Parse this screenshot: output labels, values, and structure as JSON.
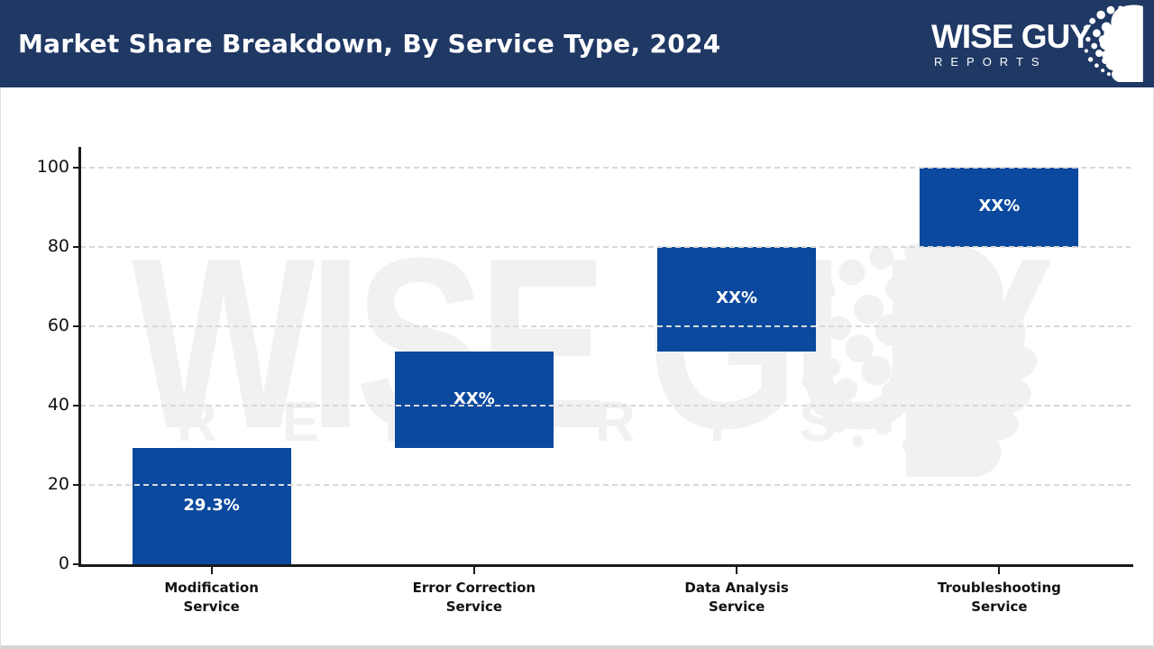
{
  "header": {
    "title": "Market Share Breakdown, By Service Type, 2024",
    "background_color": "#1f3864",
    "logo": {
      "line1": "WISE GUY",
      "line2": "REPORTS"
    }
  },
  "watermark": {
    "line1": "WISE GUY",
    "line2": "REPORTS"
  },
  "chart_data": {
    "type": "bar",
    "subtype": "floating-waterfall",
    "title": "Market Share Breakdown, By Service Type, 2024",
    "categories": [
      "Modification\nService",
      "Error Correction\nService",
      "Data Analysis\nService",
      "Troubleshooting\nService"
    ],
    "bars": [
      {
        "category": "Modification Service",
        "start": 0,
        "end": 29.3,
        "label": "29.3%"
      },
      {
        "category": "Error Correction Service",
        "start": 29.3,
        "end": 53.6,
        "label": "XX%"
      },
      {
        "category": "Data Analysis Service",
        "start": 53.6,
        "end": 80,
        "label": "XX%"
      },
      {
        "category": "Troubleshooting Service",
        "start": 80,
        "end": 100,
        "label": "XX%"
      }
    ],
    "xlabel": "",
    "ylabel": "",
    "yticks": [
      0,
      20,
      40,
      60,
      80,
      100
    ],
    "ylim": [
      0,
      104
    ],
    "grid": "horizontal-dashed",
    "legend": "none",
    "colors": {
      "bar": "#0b499e",
      "grid": "#d9d9d9",
      "axis": "#1a1a1a",
      "bar_label_text": "#ffffff",
      "tick_text": "#111111",
      "header_background": "#1f3864",
      "watermark": "#f1f1f1"
    }
  }
}
